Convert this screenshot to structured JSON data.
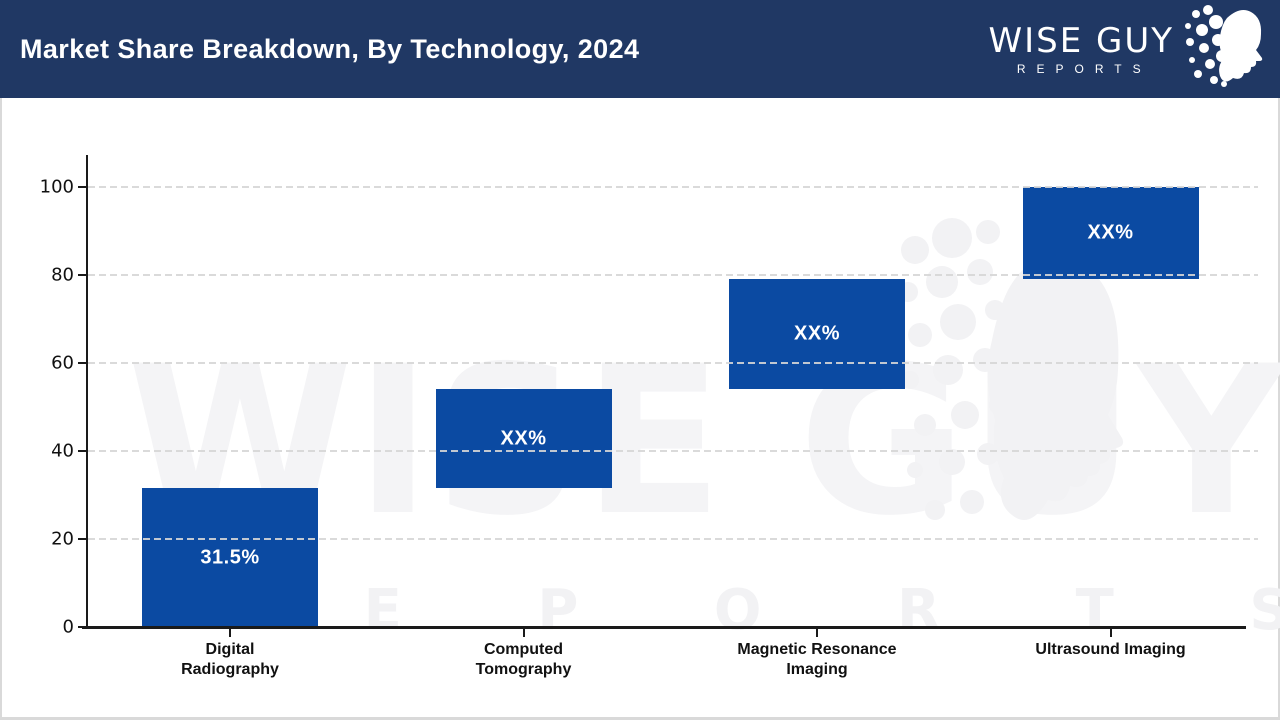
{
  "header": {
    "title": "Market Share Breakdown, By Technology, 2024",
    "logo": {
      "line1": "WISE GUY",
      "line2": "REPORTS"
    }
  },
  "watermark": {
    "line1": "WISE GUY",
    "line2": "R E P O R T S"
  },
  "colors": {
    "header_bg": "#203864",
    "bar": "#0b4aa2",
    "grid": "#d6d6d6",
    "axis": "#1a1a1a",
    "watermark_gray": "#f2f2f4"
  },
  "chart_data": {
    "type": "bar",
    "subtype": "waterfall",
    "title": "Market Share Breakdown, By Technology, 2024",
    "categories": [
      "Digital\nRadiography",
      "Computed\nTomography",
      "Magnetic Resonance\nImaging",
      "Ultrasound Imaging"
    ],
    "segments": [
      {
        "category": "Digital Radiography",
        "start": 0,
        "end": 31.5,
        "label": "31.5%"
      },
      {
        "category": "Computed Tomography",
        "start": 31.5,
        "end": 54,
        "label": "XX%"
      },
      {
        "category": "Magnetic Resonance Imaging",
        "start": 54,
        "end": 79,
        "label": "XX%"
      },
      {
        "category": "Ultrasound Imaging",
        "start": 79,
        "end": 100,
        "label": "XX%"
      }
    ],
    "yticks": [
      0,
      20,
      40,
      60,
      80,
      100
    ],
    "ylim": [
      0,
      107
    ],
    "xlabel": "",
    "ylabel": "",
    "grid": "horizontal-dashed",
    "legend": "none",
    "bar_color": "#0b4aa2",
    "bar_label_color": "#ffffff"
  }
}
